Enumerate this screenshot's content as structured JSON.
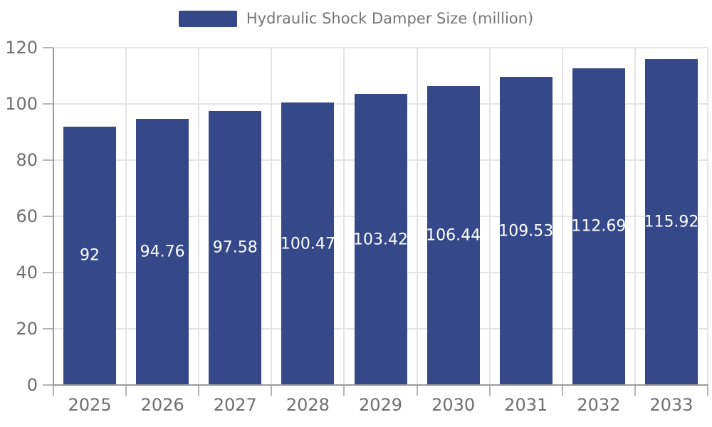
{
  "chart_data": {
    "type": "bar",
    "title": "Hydraulic Shock Damper Size (million)",
    "legend": {
      "label": "Hydraulic Shock Damper Size (million)",
      "position": "top-center"
    },
    "categories": [
      "2025",
      "2026",
      "2027",
      "2028",
      "2029",
      "2030",
      "2031",
      "2032",
      "2033"
    ],
    "series": [
      {
        "name": "Hydraulic Shock Damper Size (million)",
        "values": [
          92,
          94.76,
          97.58,
          100.47,
          103.42,
          106.44,
          109.53,
          112.69,
          115.92
        ]
      }
    ],
    "value_labels": [
      "92",
      "94.76",
      "97.58",
      "100.47",
      "103.42",
      "106.44",
      "109.53",
      "112.69",
      "115.92"
    ],
    "xlabel": "",
    "ylabel": "",
    "ylim": [
      0,
      120
    ],
    "yticks": [
      0,
      20,
      40,
      60,
      80,
      100,
      120
    ],
    "grid": true,
    "colors": {
      "bar": "#35498a",
      "value_label": "#ffffff",
      "axis": "#9a9a9a",
      "tick": "#b4b4b4",
      "gridline": "#e4e4e8",
      "text": "#6f6f6f",
      "legend_text": "#757575",
      "background": "#ffffff"
    }
  }
}
